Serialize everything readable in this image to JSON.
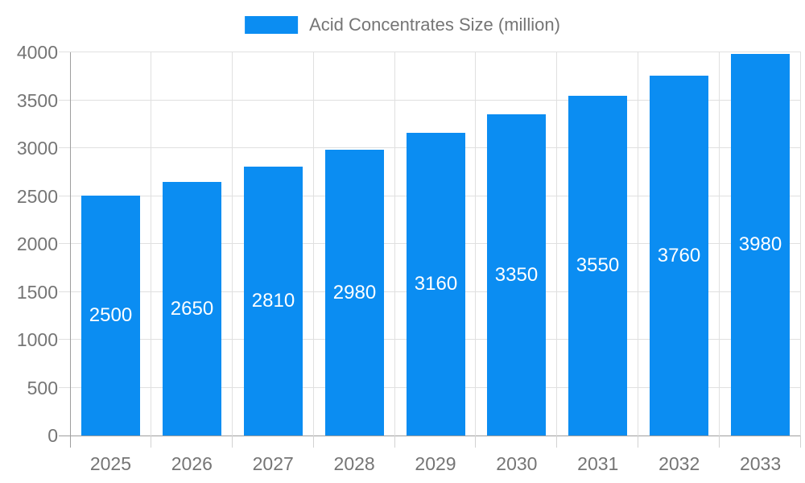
{
  "legend": {
    "label": "Acid Concentrates Size (million)"
  },
  "chart_data": {
    "type": "bar",
    "title": "Acid Concentrates Size (million)",
    "categories": [
      "2025",
      "2026",
      "2027",
      "2028",
      "2029",
      "2030",
      "2031",
      "2032",
      "2033"
    ],
    "values": [
      2500,
      2650,
      2810,
      2980,
      3160,
      3350,
      3550,
      3760,
      3980
    ],
    "bar_value_labels": [
      "2500",
      "2650",
      "2810",
      "2980",
      "3160",
      "3350",
      "3550",
      "3760",
      "3980"
    ],
    "xlabel": "",
    "ylabel": "",
    "ylim": [
      0,
      4000
    ],
    "ytick_step": 500,
    "ytick_labels": [
      "0",
      "500",
      "1000",
      "1500",
      "2000",
      "2500",
      "3000",
      "3500",
      "4000"
    ],
    "grid": true,
    "legend_position": "top-center",
    "colors": {
      "bar": "#0b8df2",
      "bar_label": "#ffffff",
      "axis_text": "#757575",
      "gridline": "#e0e0e0",
      "axis_line": "#9e9e9e",
      "background": "#ffffff"
    }
  }
}
